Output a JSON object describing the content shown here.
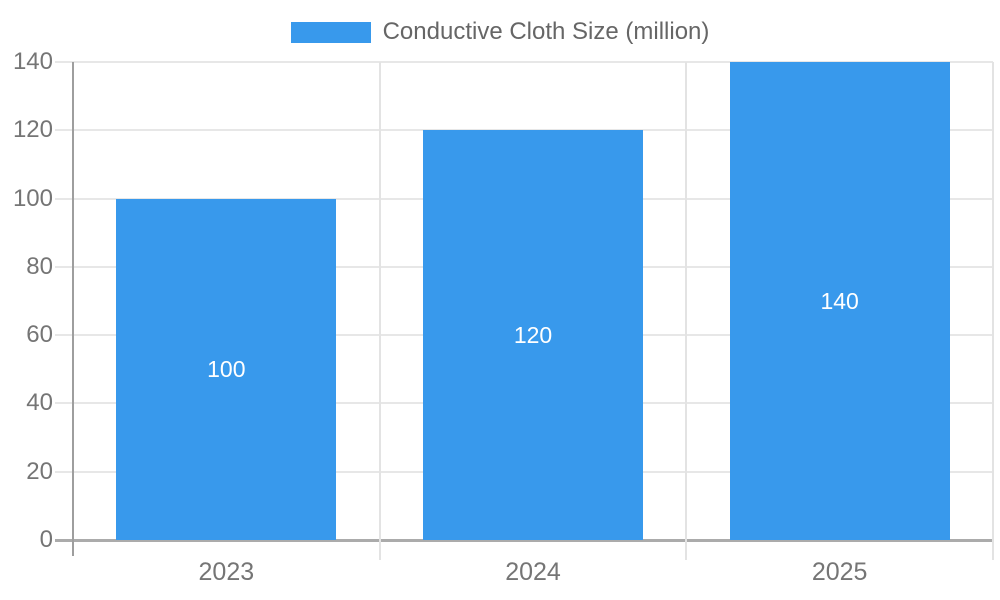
{
  "legend": {
    "label": "Conductive Cloth Size (million)"
  },
  "chart_data": {
    "type": "bar",
    "title": "",
    "xlabel": "",
    "ylabel": "",
    "categories": [
      "2023",
      "2024",
      "2025"
    ],
    "series": [
      {
        "name": "Conductive Cloth Size (million)",
        "values": [
          100,
          120,
          140
        ],
        "data_labels": [
          "100",
          "120",
          "140"
        ]
      }
    ],
    "ylim": [
      0,
      140
    ],
    "yticks": [
      0,
      20,
      40,
      60,
      80,
      100,
      120,
      140
    ],
    "ytick_labels": [
      "0",
      "20",
      "40",
      "60",
      "80",
      "100",
      "120",
      "140"
    ],
    "grid": "on",
    "legend_position": "top"
  },
  "colors": {
    "bar": "#3899EC",
    "gridline": "#E7E7E7",
    "boundary_line": "#E3E3E3",
    "y_axis_line": "#9E9E9E",
    "x_axis_line": "#ABABAB",
    "tick_text": "#757575",
    "legend_text": "#666666",
    "bar_label_text": "#FFFFFF",
    "background": "#FFFFFF"
  }
}
